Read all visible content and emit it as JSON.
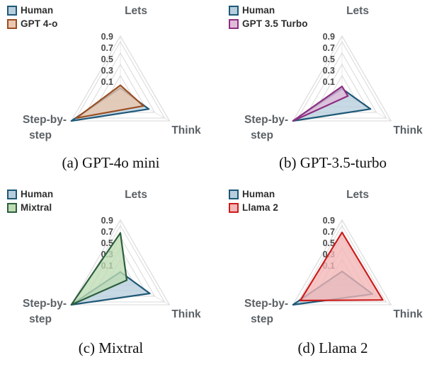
{
  "figure": {
    "background": "#ffffff",
    "grid_color": "#d9d9d9",
    "spoke_color": "#e4e4e4",
    "tick_label_color": "#4a4a4a",
    "axis_label_color": "#5b6166",
    "caption_color": "#101010"
  },
  "chart_data": [
    {
      "type": "radar",
      "caption": "(a) GPT-4o mini",
      "axes": [
        "Lets",
        "Think",
        "Step-by-step"
      ],
      "radial_ticks": [
        "0.9",
        "0.7",
        "0.5",
        "0.3",
        "0.1"
      ],
      "rmax": 1.0,
      "grid_levels": [
        0.1,
        0.3,
        0.5,
        0.7,
        0.9,
        1.0
      ],
      "legend_position": "top-left",
      "series": [
        {
          "name": "Human",
          "values": [
            0.08,
            0.58,
            1.0
          ],
          "stroke": "#1e5878",
          "fill": "#b7cedd"
        },
        {
          "name": "GPT 4-o",
          "values": [
            0.13,
            0.47,
            0.9
          ],
          "stroke": "#9a4e22",
          "fill": "#eac7ae"
        }
      ]
    },
    {
      "type": "radar",
      "caption": "(b) GPT-3.5-turbo",
      "axes": [
        "Lets",
        "Think",
        "Step-by-step"
      ],
      "radial_ticks": [
        "0.9",
        "0.7",
        "0.5",
        "0.3",
        "0.1"
      ],
      "rmax": 1.0,
      "grid_levels": [
        0.1,
        0.3,
        0.5,
        0.7,
        0.9,
        1.0
      ],
      "legend_position": "top-left",
      "series": [
        {
          "name": "Human",
          "values": [
            0.07,
            0.58,
            1.0
          ],
          "stroke": "#1e5878",
          "fill": "#b7cedd"
        },
        {
          "name": "GPT 3.5 Turbo",
          "values": [
            0.11,
            0.12,
            1.0
          ],
          "stroke": "#8e2f82",
          "fill": "#e2bbda"
        }
      ]
    },
    {
      "type": "radar",
      "caption": "(c) Mixtral",
      "axes": [
        "Lets",
        "Think",
        "Step-by-step"
      ],
      "radial_ticks": [
        "0.9",
        "0.7",
        "0.5",
        "0.3",
        "0.1"
      ],
      "rmax": 1.0,
      "grid_levels": [
        0.1,
        0.3,
        0.5,
        0.7,
        0.9,
        1.0
      ],
      "legend_position": "top-left",
      "series": [
        {
          "name": "Human",
          "values": [
            0.08,
            0.6,
            1.0
          ],
          "stroke": "#1e5878",
          "fill": "#b7cedd"
        },
        {
          "name": "Mixtral",
          "values": [
            0.77,
            0.13,
            1.0
          ],
          "stroke": "#2c5f3e",
          "fill": "#bedcb3"
        }
      ]
    },
    {
      "type": "radar",
      "caption": "(d) Llama 2",
      "axes": [
        "Lets",
        "Think",
        "Step-by-step"
      ],
      "radial_ticks": [
        "0.9",
        "0.7",
        "0.5",
        "0.3",
        "0.1"
      ],
      "rmax": 1.0,
      "grid_levels": [
        0.1,
        0.3,
        0.5,
        0.7,
        0.9,
        1.0
      ],
      "legend_position": "top-left",
      "series": [
        {
          "name": "Human",
          "values": [
            0.09,
            0.62,
            1.0
          ],
          "stroke": "#1e5878",
          "fill": "#b7cedd"
        },
        {
          "name": "Llama 2",
          "values": [
            0.78,
            0.83,
            0.85
          ],
          "stroke": "#cc1c1c",
          "fill": "#f4b6b6"
        }
      ]
    }
  ]
}
